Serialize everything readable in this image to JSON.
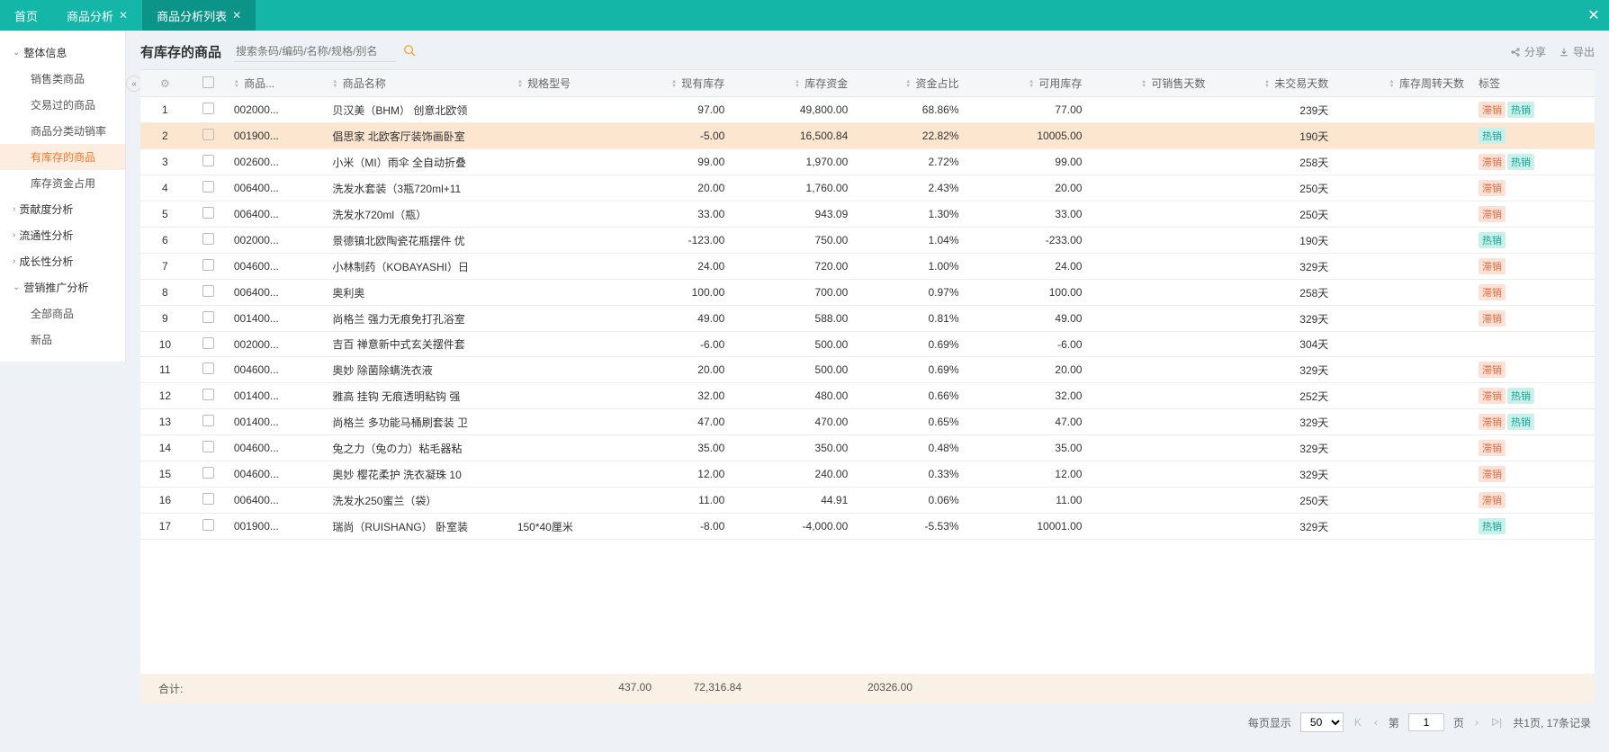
{
  "tabs": [
    {
      "label": "首页",
      "closable": false
    },
    {
      "label": "商品分析",
      "closable": true
    },
    {
      "label": "商品分析列表",
      "closable": true,
      "active": true
    }
  ],
  "sidebar": {
    "groups": [
      {
        "label": "整体信息",
        "expanded": true,
        "items": [
          {
            "label": "销售类商品"
          },
          {
            "label": "交易过的商品"
          },
          {
            "label": "商品分类动销率"
          },
          {
            "label": "有库存的商品",
            "active": true
          },
          {
            "label": "库存资金占用"
          }
        ]
      },
      {
        "label": "贡献度分析",
        "expanded": false,
        "items": []
      },
      {
        "label": "流通性分析",
        "expanded": false,
        "items": []
      },
      {
        "label": "成长性分析",
        "expanded": false,
        "items": []
      },
      {
        "label": "营销推广分析",
        "expanded": true,
        "items": [
          {
            "label": "全部商品"
          },
          {
            "label": "新品"
          }
        ]
      }
    ]
  },
  "header": {
    "title": "有库存的商品",
    "search_placeholder": "搜索条码/编码/名称/规格/别名",
    "share": "分享",
    "export": "导出"
  },
  "columns": {
    "gear": "",
    "check": "",
    "code": "商品...",
    "name": "商品名称",
    "spec": "规格型号",
    "stock": "现有库存",
    "fund": "库存资金",
    "pct": "资金占比",
    "avail": "可用库存",
    "salesdays": "可销售天数",
    "notradedays": "未交易天数",
    "turndays": "库存周转天数",
    "tags": "标签"
  },
  "tags_palette": {
    "stale": "滞销",
    "hot": "热销"
  },
  "rows": [
    {
      "idx": 1,
      "code": "002000...",
      "name": "贝汉美（BHM） 创意北欧领",
      "spec": "",
      "stock": "97.00",
      "fund": "49,800.00",
      "pct": "68.86%",
      "avail": "77.00",
      "salesdays": "",
      "notradedays": "239天",
      "turndays": "",
      "tags": [
        "stale",
        "hot"
      ]
    },
    {
      "idx": 2,
      "code": "001900...",
      "name": "倡思家 北欧客厅装饰画卧室",
      "spec": "",
      "stock": "-5.00",
      "fund": "16,500.84",
      "pct": "22.82%",
      "avail": "10005.00",
      "salesdays": "",
      "notradedays": "190天",
      "turndays": "",
      "tags": [
        "hot"
      ],
      "highlight": true
    },
    {
      "idx": 3,
      "code": "002600...",
      "name": "小米（MI）雨伞 全自动折叠",
      "spec": "",
      "stock": "99.00",
      "fund": "1,970.00",
      "pct": "2.72%",
      "avail": "99.00",
      "salesdays": "",
      "notradedays": "258天",
      "turndays": "",
      "tags": [
        "stale",
        "hot"
      ]
    },
    {
      "idx": 4,
      "code": "006400...",
      "name": "洗发水套装（3瓶720ml+11",
      "spec": "",
      "stock": "20.00",
      "fund": "1,760.00",
      "pct": "2.43%",
      "avail": "20.00",
      "salesdays": "",
      "notradedays": "250天",
      "turndays": "",
      "tags": [
        "stale"
      ]
    },
    {
      "idx": 5,
      "code": "006400...",
      "name": "洗发水720ml（瓶）",
      "spec": "",
      "stock": "33.00",
      "fund": "943.09",
      "pct": "1.30%",
      "avail": "33.00",
      "salesdays": "",
      "notradedays": "250天",
      "turndays": "",
      "tags": [
        "stale"
      ]
    },
    {
      "idx": 6,
      "code": "002000...",
      "name": "景德镇北欧陶瓷花瓶摆件 优",
      "spec": "",
      "stock": "-123.00",
      "fund": "750.00",
      "pct": "1.04%",
      "avail": "-233.00",
      "salesdays": "",
      "notradedays": "190天",
      "turndays": "",
      "tags": [
        "hot"
      ]
    },
    {
      "idx": 7,
      "code": "004600...",
      "name": "小林制药（KOBAYASHI）日",
      "spec": "",
      "stock": "24.00",
      "fund": "720.00",
      "pct": "1.00%",
      "avail": "24.00",
      "salesdays": "",
      "notradedays": "329天",
      "turndays": "",
      "tags": [
        "stale"
      ]
    },
    {
      "idx": 8,
      "code": "006400...",
      "name": "奥利奥",
      "spec": "",
      "stock": "100.00",
      "fund": "700.00",
      "pct": "0.97%",
      "avail": "100.00",
      "salesdays": "",
      "notradedays": "258天",
      "turndays": "",
      "tags": [
        "stale"
      ]
    },
    {
      "idx": 9,
      "code": "001400...",
      "name": "尚格兰 强力无痕免打孔浴室",
      "spec": "",
      "stock": "49.00",
      "fund": "588.00",
      "pct": "0.81%",
      "avail": "49.00",
      "salesdays": "",
      "notradedays": "329天",
      "turndays": "",
      "tags": [
        "stale"
      ]
    },
    {
      "idx": 10,
      "code": "002000...",
      "name": "吉百 禅意新中式玄关摆件套",
      "spec": "",
      "stock": "-6.00",
      "fund": "500.00",
      "pct": "0.69%",
      "avail": "-6.00",
      "salesdays": "",
      "notradedays": "304天",
      "turndays": "",
      "tags": []
    },
    {
      "idx": 11,
      "code": "004600...",
      "name": "奥妙 除菌除螨洗衣液",
      "spec": "",
      "stock": "20.00",
      "fund": "500.00",
      "pct": "0.69%",
      "avail": "20.00",
      "salesdays": "",
      "notradedays": "329天",
      "turndays": "",
      "tags": [
        "stale"
      ]
    },
    {
      "idx": 12,
      "code": "001400...",
      "name": "雅高 挂钩 无痕透明粘钩 强",
      "spec": "",
      "stock": "32.00",
      "fund": "480.00",
      "pct": "0.66%",
      "avail": "32.00",
      "salesdays": "",
      "notradedays": "252天",
      "turndays": "",
      "tags": [
        "stale",
        "hot"
      ]
    },
    {
      "idx": 13,
      "code": "001400...",
      "name": "尚格兰 多功能马桶刷套装 卫",
      "spec": "",
      "stock": "47.00",
      "fund": "470.00",
      "pct": "0.65%",
      "avail": "47.00",
      "salesdays": "",
      "notradedays": "329天",
      "turndays": "",
      "tags": [
        "stale",
        "hot"
      ]
    },
    {
      "idx": 14,
      "code": "004600...",
      "name": "兔之力（兔の力）粘毛器粘",
      "spec": "",
      "stock": "35.00",
      "fund": "350.00",
      "pct": "0.48%",
      "avail": "35.00",
      "salesdays": "",
      "notradedays": "329天",
      "turndays": "",
      "tags": [
        "stale"
      ]
    },
    {
      "idx": 15,
      "code": "004600...",
      "name": "奥妙 樱花柔护 洗衣凝珠 10",
      "spec": "",
      "stock": "12.00",
      "fund": "240.00",
      "pct": "0.33%",
      "avail": "12.00",
      "salesdays": "",
      "notradedays": "329天",
      "turndays": "",
      "tags": [
        "stale"
      ]
    },
    {
      "idx": 16,
      "code": "006400...",
      "name": "洗发水250蜜兰（袋）",
      "spec": "",
      "stock": "11.00",
      "fund": "44.91",
      "pct": "0.06%",
      "avail": "11.00",
      "salesdays": "",
      "notradedays": "250天",
      "turndays": "",
      "tags": [
        "stale"
      ]
    },
    {
      "idx": 17,
      "code": "001900...",
      "name": "瑞尚（RUISHANG） 卧室装",
      "spec": "150*40厘米",
      "stock": "-8.00",
      "fund": "-4,000.00",
      "pct": "-5.53%",
      "avail": "10001.00",
      "salesdays": "",
      "notradedays": "329天",
      "turndays": "",
      "tags": [
        "hot"
      ]
    }
  ],
  "totals": {
    "label": "合计:",
    "stock": "437.00",
    "fund": "72,316.84",
    "avail": "20326.00"
  },
  "pager": {
    "per_page_label": "每页显示",
    "per_page_value": "50",
    "before_input": "第",
    "page_value": "1",
    "after_input": "页",
    "summary": "共1页, 17条记录"
  },
  "col_widths": {
    "gear": 40,
    "check": 30,
    "code": 80,
    "name": 150,
    "spec": 90,
    "stock": 90,
    "fund": 100,
    "pct": 90,
    "avail": 100,
    "salesdays": 100,
    "notradedays": 100,
    "turndays": 110,
    "tags": 100
  }
}
